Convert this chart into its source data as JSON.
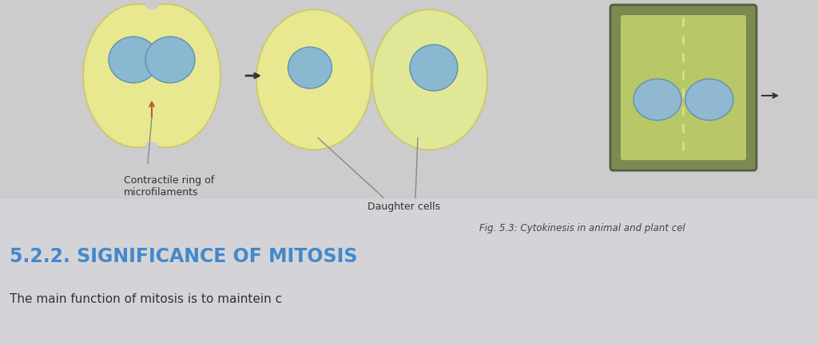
{
  "background_color": "#c8c8cc",
  "fig_width": 10.24,
  "fig_height": 4.33,
  "dpi": 100,
  "label_contractile": "Contractile ring of\nmicrofilaments",
  "label_daughter": "Daughter cells",
  "label_fig": "Fig. 5.3: Cytokinesis in animal and plant cel",
  "label_section": "5.2.2. SIGNIFICANCE OF MITOSIS",
  "label_body": "The main function of mitosis is to maintein c",
  "cell_yellow": "#e8e890",
  "cell_yellow_edge": "#d0c870",
  "cell_nucleus_blue": "#8ab8d0",
  "cell_green_outer": "#7a8a50",
  "cell_green_inner": "#b0b870",
  "cell_green_lightest": "#d0d890",
  "arrow_color": "#444444",
  "label_color": "#333333",
  "section_color": "#4488cc",
  "body_color": "#333333",
  "fig_label_color": "#555555",
  "bg_upper": "#c0c0c4",
  "bg_lower": "#d8d8dc"
}
